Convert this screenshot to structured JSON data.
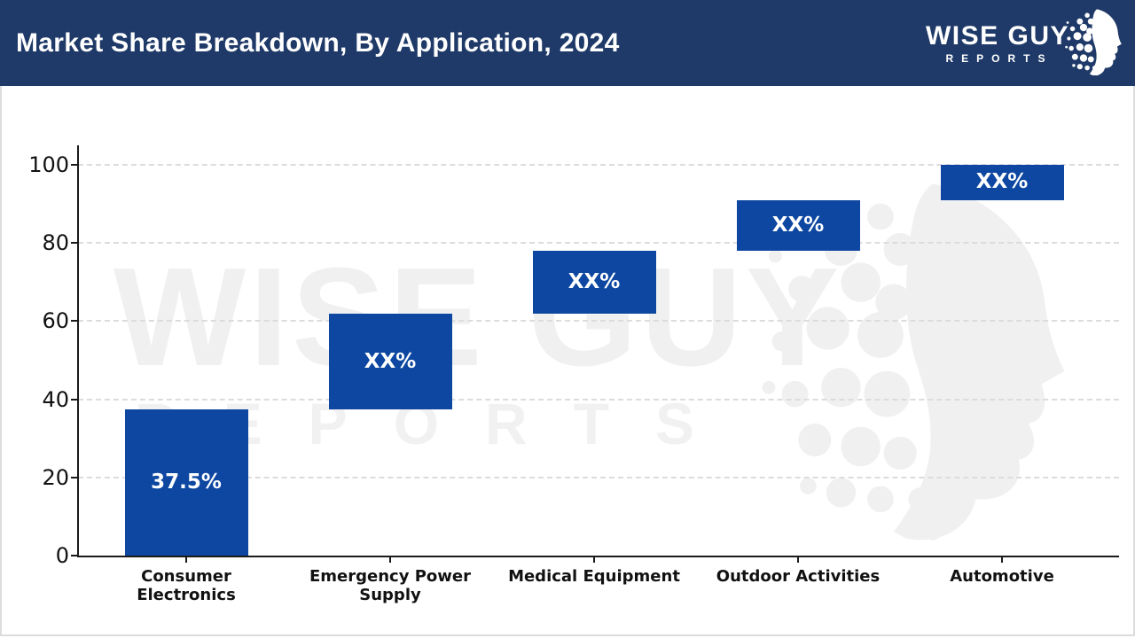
{
  "header": {
    "title": "Market Share Breakdown, By Application, 2024",
    "logo_line1": "WISE GUY",
    "logo_line2": "REPORTS"
  },
  "watermark": {
    "line1": "WISE GUY",
    "line2": "REPORTS"
  },
  "chart_data": {
    "type": "bar",
    "variant": "waterfall",
    "title": "Market Share Breakdown, By Application, 2024",
    "categories": [
      "Consumer Electronics",
      "Emergency Power Supply",
      "Medical Equipment",
      "Outdoor Activities",
      "Automotive"
    ],
    "category_label_lines": [
      [
        "Consumer",
        "Electronics"
      ],
      [
        "Emergency Power",
        "Supply"
      ],
      [
        "Medical Equipment"
      ],
      [
        "Outdoor Activities"
      ],
      [
        "Automotive"
      ]
    ],
    "segments": [
      {
        "category": "Consumer Electronics",
        "start": 0,
        "end": 37.5,
        "label": "37.5%"
      },
      {
        "category": "Emergency Power Supply",
        "start": 37.5,
        "end": 62,
        "label": "XX%"
      },
      {
        "category": "Medical Equipment",
        "start": 62,
        "end": 78,
        "label": "XX%"
      },
      {
        "category": "Outdoor Activities",
        "start": 78,
        "end": 91,
        "label": "XX%"
      },
      {
        "category": "Automotive",
        "start": 91,
        "end": 100,
        "label": "XX%"
      }
    ],
    "yticks": [
      0,
      20,
      40,
      60,
      80,
      100
    ],
    "ylim": [
      0,
      105
    ],
    "xlabel": "",
    "ylabel": "",
    "grid": {
      "axis": "y",
      "style": "dashed"
    },
    "legend": "none",
    "colors": {
      "bar": "#0d47a1",
      "bar_label": "#ffffff",
      "axis": "#1a1a1a",
      "gridline": "#dcdcdc",
      "header_bg": "#1f3a68",
      "watermark": "#f0f0f0"
    }
  }
}
